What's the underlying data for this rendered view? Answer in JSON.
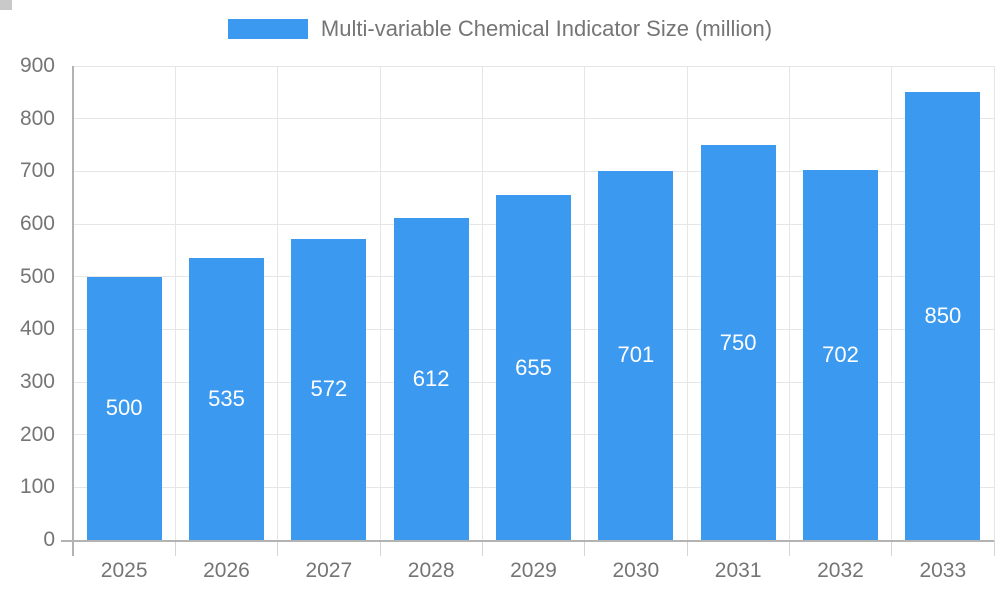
{
  "chart_data": {
    "type": "bar",
    "title": "Multi-variable Chemical Indicator Size (million)",
    "categories": [
      "2025",
      "2026",
      "2027",
      "2028",
      "2029",
      "2030",
      "2031",
      "2032",
      "2033"
    ],
    "values": [
      500,
      535,
      572,
      612,
      655,
      701,
      750,
      702,
      850
    ],
    "xlabel": "",
    "ylabel": "",
    "ylim": [
      0,
      900
    ],
    "ytick_step": 100,
    "grid": true,
    "legend_position": "top",
    "colors": {
      "bar": "#3b99f0",
      "bar_label": "#ffffff",
      "axis_text": "#757575",
      "grid_line": "#e6e6e6",
      "axis_line": "#b3b3b3",
      "boundary_tick": "#d4d4d4"
    }
  }
}
